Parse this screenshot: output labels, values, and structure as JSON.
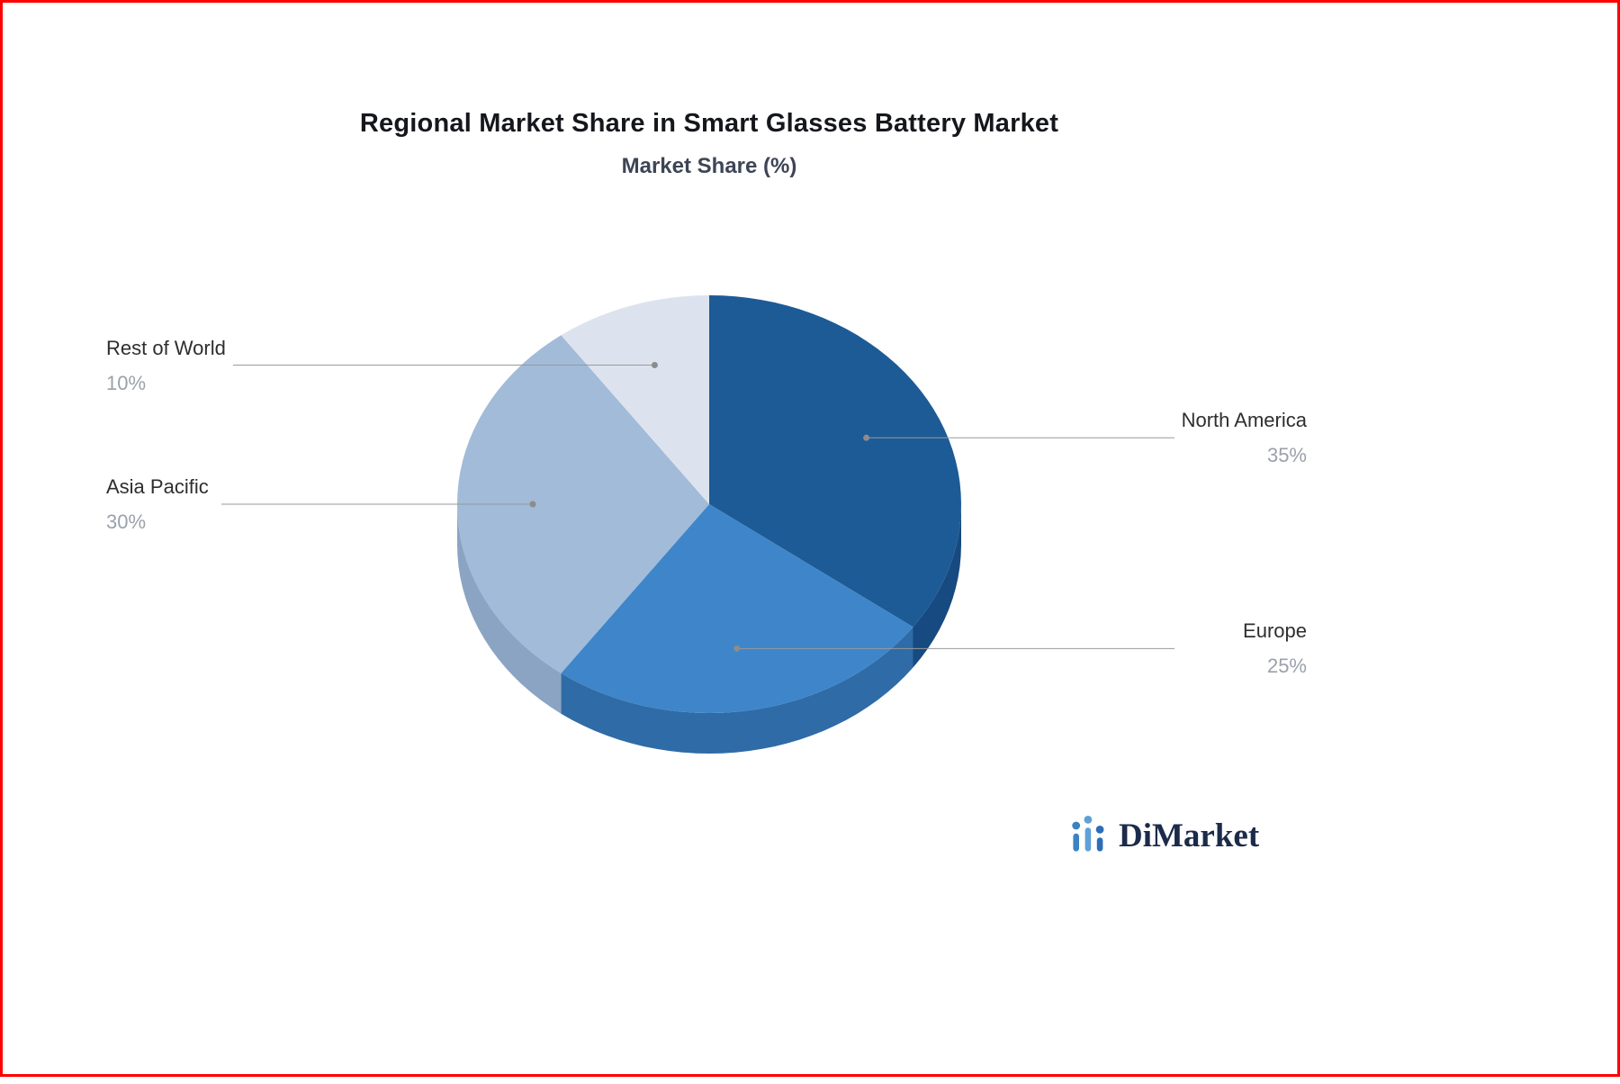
{
  "header": {
    "title": "Regional Market Share in Smart Glasses Battery Market",
    "subtitle": "Market Share (%)"
  },
  "chart_data": {
    "type": "pie",
    "title": "Regional Market Share in Smart Glasses Battery Market",
    "subtitle": "Market Share (%)",
    "unit": "%",
    "effect": "3d",
    "direction": "clockwise",
    "start_angle_deg": 0,
    "legend_position": "outside-labels-with-leader-lines",
    "slices": [
      {
        "label": "North America",
        "value": 35,
        "display": "35%",
        "color": "#1d5b97",
        "side_color": "#164a80"
      },
      {
        "label": "Europe",
        "value": 25,
        "display": "25%",
        "color": "#3e86c9",
        "side_color": "#2f6ba6"
      },
      {
        "label": "Asia Pacific",
        "value": 30,
        "display": "30%",
        "color": "#a2bbd8",
        "side_color": "#8ba4c3"
      },
      {
        "label": "Rest of World",
        "value": 10,
        "display": "10%",
        "color": "#dde3ee",
        "side_color": "#c2cbdc"
      }
    ],
    "leader_line_color": "#9a9a9a",
    "leader_dot_color": "#8c8c8c"
  },
  "logo": {
    "text": "DiMarket",
    "icon": "bar-chart-dots-icon"
  }
}
